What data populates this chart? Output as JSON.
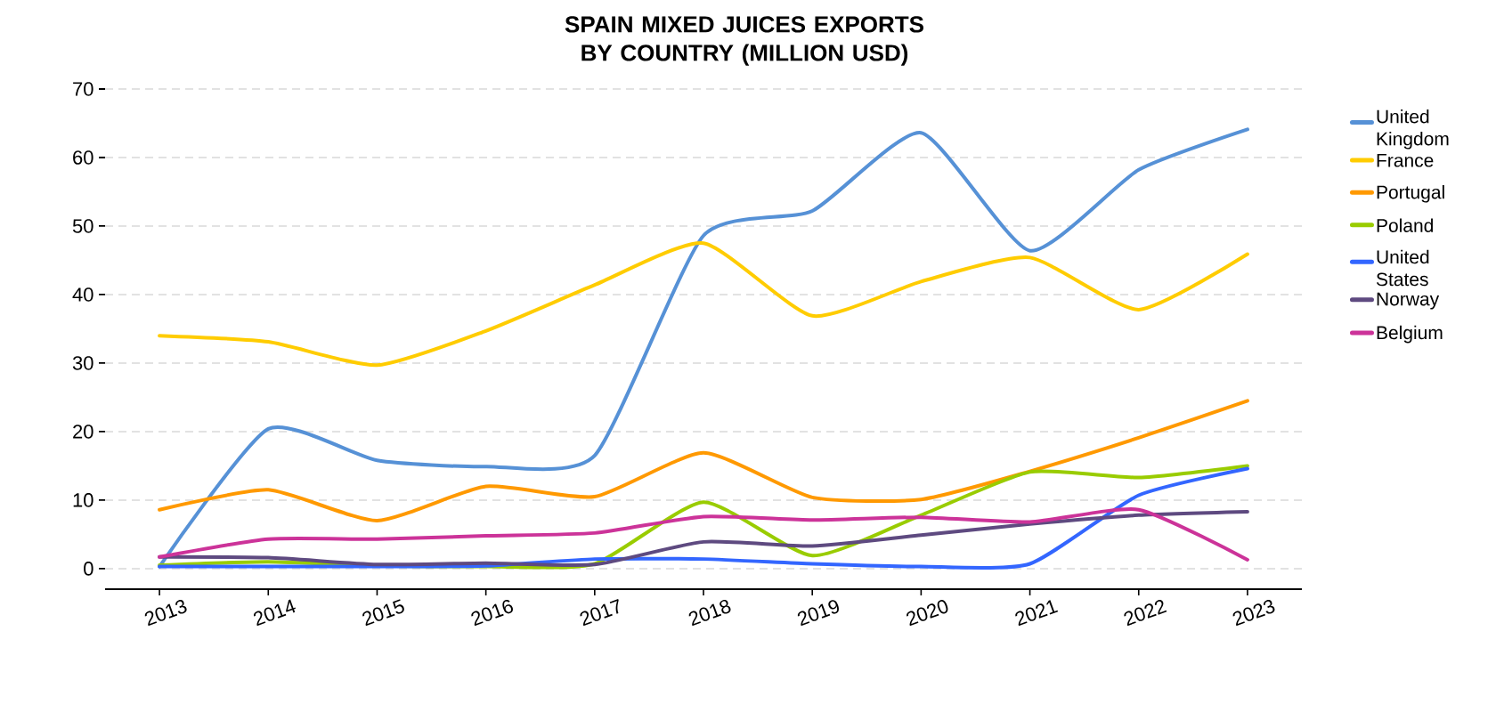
{
  "chart_data": {
    "type": "line",
    "title": "SPAIN MIXED JUICES EXPORTS BY COUNTRY (MILLION USD)",
    "x": [
      2013,
      2014,
      2015,
      2016,
      2017,
      2018,
      2019,
      2020,
      2021,
      2022,
      2023
    ],
    "series": [
      {
        "name": "United Kingdom",
        "color": "#5691d6",
        "values": [
          0.3,
          20.4,
          15.8,
          14.9,
          16.5,
          48.6,
          52.2,
          63.6,
          46.4,
          58.2,
          64.1
        ]
      },
      {
        "name": "France",
        "color": "#ffcc00",
        "values": [
          34.0,
          33.1,
          29.7,
          34.7,
          41.4,
          47.5,
          36.9,
          41.9,
          45.4,
          37.8,
          45.9
        ]
      },
      {
        "name": "Portugal",
        "color": "#ff9900",
        "values": [
          8.6,
          11.5,
          7.0,
          12.0,
          10.5,
          16.9,
          10.4,
          10.1,
          14.2,
          19.1,
          24.5
        ]
      },
      {
        "name": "Poland",
        "color": "#99cc00",
        "values": [
          0.5,
          1.0,
          0.4,
          0.3,
          0.7,
          9.7,
          1.9,
          7.8,
          14.1,
          13.3,
          15.0
        ]
      },
      {
        "name": "United States",
        "color": "#3366ff",
        "values": [
          0.3,
          0.3,
          0.3,
          0.4,
          1.4,
          1.4,
          0.7,
          0.3,
          0.7,
          10.7,
          14.6
        ]
      },
      {
        "name": "Norway",
        "color": "#5e4a80",
        "values": [
          1.7,
          1.6,
          0.6,
          0.8,
          0.6,
          3.9,
          3.3,
          4.9,
          6.5,
          7.8,
          8.3
        ]
      },
      {
        "name": "Belgium",
        "color": "#cc3399",
        "values": [
          1.7,
          4.3,
          4.3,
          4.8,
          5.2,
          7.6,
          7.1,
          7.5,
          6.8,
          8.6,
          1.3
        ]
      }
    ],
    "xlim": [
      2012.5,
      2023.5
    ],
    "ylim": [
      -3,
      70
    ],
    "xticks": [
      2013,
      2014,
      2015,
      2016,
      2017,
      2018,
      2019,
      2020,
      2021,
      2022,
      2023
    ],
    "yticks": [
      0,
      10,
      20,
      30,
      40,
      50,
      60,
      70
    ],
    "grid": "y",
    "legend": "right",
    "line_style": "solid"
  }
}
